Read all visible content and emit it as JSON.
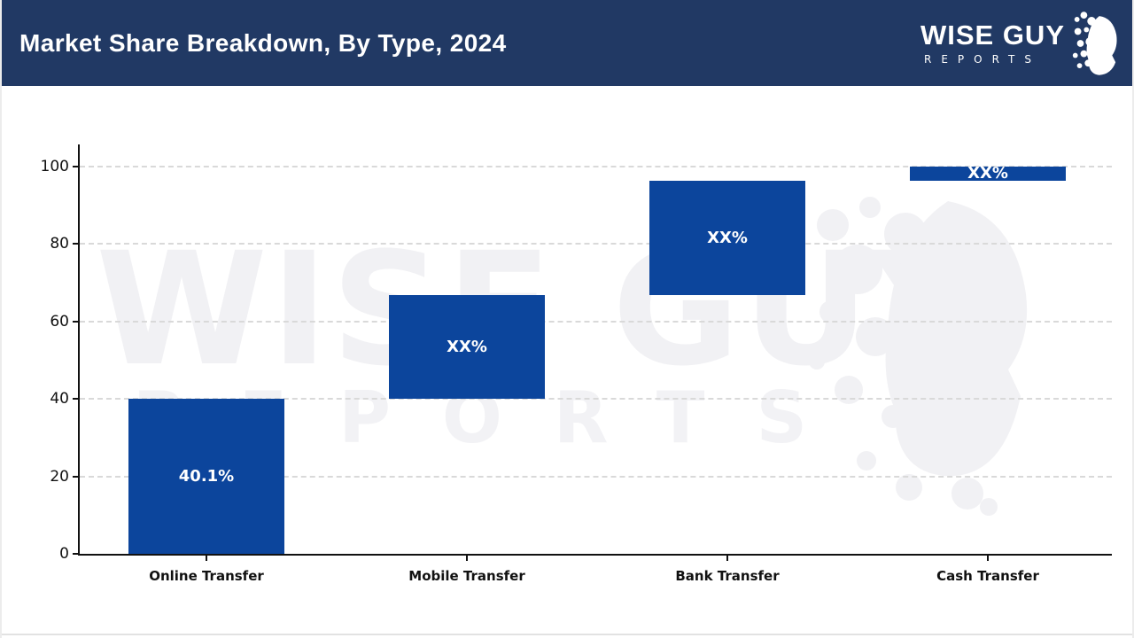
{
  "header": {
    "title": "Market Share Breakdown, By Type, 2024",
    "logo": {
      "line1": "WISE GUY",
      "line2": "REPORTS"
    }
  },
  "watermark": {
    "line1": "WISE GUY",
    "line2": "REPORTS"
  },
  "chart_data": {
    "type": "bar",
    "subtype": "waterfall",
    "title": "Market Share Breakdown, By Type, 2024",
    "categories": [
      "Online Transfer",
      "Mobile Transfer",
      "Bank Transfer",
      "Cash Transfer"
    ],
    "segments": [
      {
        "category": "Online Transfer",
        "start": 0,
        "end": 40.1,
        "label": "40.1%"
      },
      {
        "category": "Mobile Transfer",
        "start": 40.1,
        "end": 66.7,
        "label": "XX%"
      },
      {
        "category": "Bank Transfer",
        "start": 66.7,
        "end": 96.2,
        "label": "XX%"
      },
      {
        "category": "Cash Transfer",
        "start": 96.2,
        "end": 100,
        "label": "XX%"
      }
    ],
    "xlabel": "",
    "ylabel": "",
    "ylim": [
      0,
      105
    ],
    "yticks": [
      0,
      20,
      40,
      60,
      80,
      100
    ],
    "grid": "horizontal-dashed",
    "legend": "none"
  },
  "colors": {
    "header_bg": "#213964",
    "bar": "#0c459c",
    "bar_label": "#ffffff",
    "grid": "#d9d9d9",
    "axis": "#111111",
    "watermark": "#f1f1f4"
  }
}
